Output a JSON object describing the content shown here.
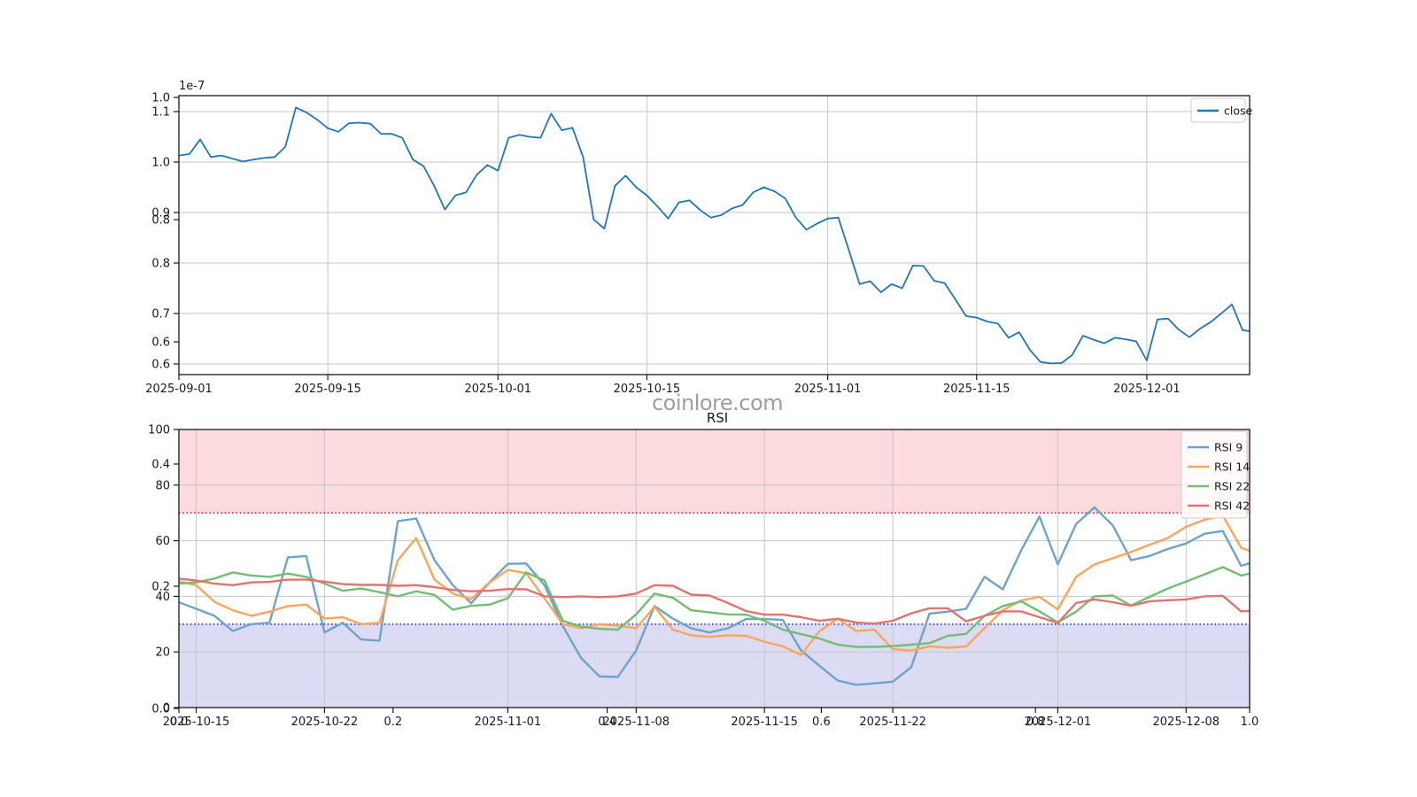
{
  "watermark": "coinlore.com",
  "rsi_title": "RSI",
  "colors": {
    "price": "#1f77b4",
    "rsi9": "#6ea3cc",
    "rsi14": "#fda55c",
    "rsi22": "#74bd74",
    "rsi42": "#df7573",
    "overbought_line": "#dc143c",
    "oversold_line": "#2424d6",
    "overbought_band": "#fbdbde",
    "oversold_band": "#dbdbf4",
    "grid": "#c6c6c6",
    "spine": "#1a1a1a",
    "tick_text": "#1a1a1a",
    "legend_border": "#cccccc",
    "watermark_color": "#9e9e9e"
  },
  "chart_data": [
    {
      "type": "line",
      "name": "close-price",
      "start_date": "2025-09-01",
      "end_date": "2025-12-11",
      "unit_offset_label": "1e-7",
      "ylim": [
        0.579,
        1.132
      ],
      "grid": true,
      "legend_position": "upper right",
      "yticks": [
        {
          "v": 1.1,
          "label": "1.1"
        },
        {
          "v": 1.0,
          "label": "1.0"
        },
        {
          "v": 0.9,
          "label": "0.9"
        },
        {
          "v": 0.8,
          "label": "0.8"
        },
        {
          "v": 0.7,
          "label": "0.7"
        },
        {
          "v": 0.6,
          "label": "0.6"
        }
      ],
      "xticks": [
        {
          "i": 0,
          "label": "2025-09-01"
        },
        {
          "i": 14,
          "label": "2025-09-15"
        },
        {
          "i": 30,
          "label": "2025-10-01"
        },
        {
          "i": 44,
          "label": "2025-10-15"
        },
        {
          "i": 61,
          "label": "2025-11-01"
        },
        {
          "i": 75,
          "label": "2025-11-15"
        },
        {
          "i": 91,
          "label": "2025-12-01"
        }
      ],
      "series": [
        {
          "name": "close",
          "color_key": "price",
          "values": [
            1.013,
            1.016,
            1.045,
            1.01,
            1.013,
            1.007,
            1.001,
            1.005,
            1.008,
            1.01,
            1.03,
            1.108,
            1.098,
            1.084,
            1.067,
            1.06,
            1.077,
            1.078,
            1.076,
            1.056,
            1.056,
            1.048,
            1.005,
            0.992,
            0.953,
            0.906,
            0.934,
            0.94,
            0.975,
            0.994,
            0.983,
            1.048,
            1.054,
            1.05,
            1.048,
            1.096,
            1.063,
            1.068,
            1.01,
            0.886,
            0.868,
            0.953,
            0.973,
            0.95,
            0.934,
            0.912,
            0.888,
            0.92,
            0.924,
            0.905,
            0.89,
            0.895,
            0.908,
            0.915,
            0.94,
            0.95,
            0.942,
            0.928,
            0.89,
            0.866,
            0.878,
            0.888,
            0.89,
            0.825,
            0.758,
            0.764,
            0.742,
            0.758,
            0.75,
            0.795,
            0.794,
            0.765,
            0.76,
            0.728,
            0.695,
            0.692,
            0.684,
            0.68,
            0.652,
            0.663,
            0.628,
            0.604,
            0.601,
            0.602,
            0.618,
            0.656,
            0.648,
            0.641,
            0.652,
            0.649,
            0.645,
            0.607,
            0.688,
            0.69,
            0.668,
            0.653,
            0.67,
            0.683,
            0.7,
            0.718,
            0.667,
            0.664
          ]
        }
      ]
    },
    {
      "type": "line",
      "name": "rsi",
      "title": "RSI",
      "start_date": "2025-10-14",
      "end_date": "2025-12-12",
      "ylim": [
        0,
        100
      ],
      "grid": true,
      "legend_position": "upper right",
      "yticks": [
        {
          "v": 100,
          "label": "100"
        },
        {
          "v": 80,
          "label": "80"
        },
        {
          "v": 60,
          "label": "60"
        },
        {
          "v": 40,
          "label": "40"
        },
        {
          "v": 20,
          "label": "20"
        },
        {
          "v": 0,
          "label": "0"
        }
      ],
      "xticks": [
        {
          "i": 1,
          "label": "2025-10-15"
        },
        {
          "i": 8,
          "label": "2025-10-22"
        },
        {
          "i": 18,
          "label": "2025-11-01"
        },
        {
          "i": 25,
          "label": "2025-11-08"
        },
        {
          "i": 32,
          "label": "2025-11-15"
        },
        {
          "i": 39,
          "label": "2025-11-22"
        },
        {
          "i": 48,
          "label": "2025-12-01"
        },
        {
          "i": 55,
          "label": "2025-12-08"
        }
      ],
      "bands": [
        {
          "from": 70,
          "to": 100,
          "color_key": "overbought_band",
          "name": "overbought-band"
        },
        {
          "from": 0,
          "to": 30,
          "color_key": "oversold_band",
          "name": "oversold-band"
        }
      ],
      "hlines": [
        {
          "v": 70,
          "color_key": "overbought_line",
          "name": "overbought-line"
        },
        {
          "v": 30,
          "color_key": "oversold_line",
          "name": "oversold-line"
        }
      ],
      "series": [
        {
          "name": "RSI 9",
          "color_key": "rsi9",
          "values": [
            38,
            35.5,
            33,
            27.5,
            30,
            30.5,
            54,
            54.5,
            27,
            30.5,
            24.5,
            24,
            67,
            68,
            53,
            44,
            37.5,
            45,
            51.7,
            51.8,
            44,
            29.3,
            17.8,
            11.2,
            11,
            20.5,
            36.5,
            32,
            28.5,
            27,
            28.5,
            31.8,
            31.8,
            31.5,
            20.5,
            15,
            9.7,
            8.2,
            8.7,
            9.3,
            14.5,
            33.8,
            34.5,
            35.5,
            47,
            42.5,
            56.5,
            68.7,
            51.5,
            66,
            72,
            65.5,
            53,
            54.5,
            57,
            59,
            62.5,
            63.5,
            51,
            53
          ]
        },
        {
          "name": "RSI 14",
          "color_key": "rsi14",
          "values": [
            45.5,
            44,
            38,
            35,
            33,
            34.5,
            36.5,
            37,
            32,
            32.5,
            30,
            30.5,
            53,
            61,
            46,
            41,
            39,
            45,
            49.5,
            48.3,
            39.3,
            30,
            28.5,
            30,
            29.5,
            28.5,
            36.3,
            28,
            26,
            25.4,
            26,
            25.8,
            23.7,
            22,
            18.9,
            27.5,
            32,
            27.5,
            28,
            21,
            20.5,
            22,
            21.5,
            22,
            28.5,
            35,
            38.5,
            39.8,
            35.3,
            47,
            51.5,
            53.7,
            56,
            58.5,
            61,
            65,
            67.5,
            69,
            57.5,
            55
          ]
        },
        {
          "name": "RSI 22",
          "color_key": "rsi22",
          "values": [
            44.5,
            45,
            46.4,
            48.6,
            47.5,
            47,
            48.2,
            47,
            44.6,
            42,
            42.8,
            41.5,
            40,
            41.8,
            40.5,
            35.2,
            36.6,
            37,
            39.3,
            48.6,
            45.7,
            31.2,
            29.1,
            28.3,
            28,
            33.5,
            41,
            39.5,
            35,
            34.2,
            33.5,
            33.4,
            31.2,
            28,
            26.4,
            24.8,
            22.6,
            21.8,
            21.8,
            22.1,
            22.6,
            23.2,
            25.8,
            26.5,
            33,
            36.5,
            38.2,
            34.6,
            30.6,
            34.5,
            40,
            40.3,
            36.7,
            39.8,
            42.8,
            45.3,
            47.9,
            50.5,
            47.5,
            49
          ]
        },
        {
          "name": "RSI 42",
          "color_key": "rsi42",
          "values": [
            46.4,
            45.7,
            44.6,
            44,
            45,
            45.2,
            46,
            46,
            45.3,
            44.4,
            44.1,
            44.1,
            43.8,
            44,
            43.3,
            42.3,
            41.8,
            42,
            42.6,
            42.5,
            40,
            39.7,
            40,
            39.7,
            40,
            41,
            44,
            43.8,
            40.6,
            40.3,
            37.6,
            34.7,
            33.4,
            33.4,
            32.5,
            31.2,
            31.9,
            30.6,
            30.2,
            31.2,
            33.9,
            35.7,
            35.7,
            31,
            33,
            34.6,
            34.6,
            32.5,
            30.4,
            37.6,
            38.9,
            37.9,
            36.6,
            38.2,
            38.6,
            38.9,
            40,
            40.2,
            34.6,
            35
          ]
        }
      ]
    }
  ],
  "overlay_axis": {
    "yticks": [
      {
        "v": 1.0,
        "label": "1.0"
      },
      {
        "v": 0.8,
        "label": "0.8"
      },
      {
        "v": 0.6,
        "label": "0.6"
      },
      {
        "v": 0.4,
        "label": "0.4"
      },
      {
        "v": 0.2,
        "label": "0.2"
      },
      {
        "v": 0.0,
        "label": "0.0"
      }
    ],
    "xticks": [
      {
        "v": 0.0,
        "label": "0.0"
      },
      {
        "v": 0.2,
        "label": "0.2"
      },
      {
        "v": 0.4,
        "label": "0.4"
      },
      {
        "v": 0.6,
        "label": "0.6"
      },
      {
        "v": 0.8,
        "label": "0.8"
      },
      {
        "v": 1.0,
        "label": "1.0"
      }
    ]
  }
}
